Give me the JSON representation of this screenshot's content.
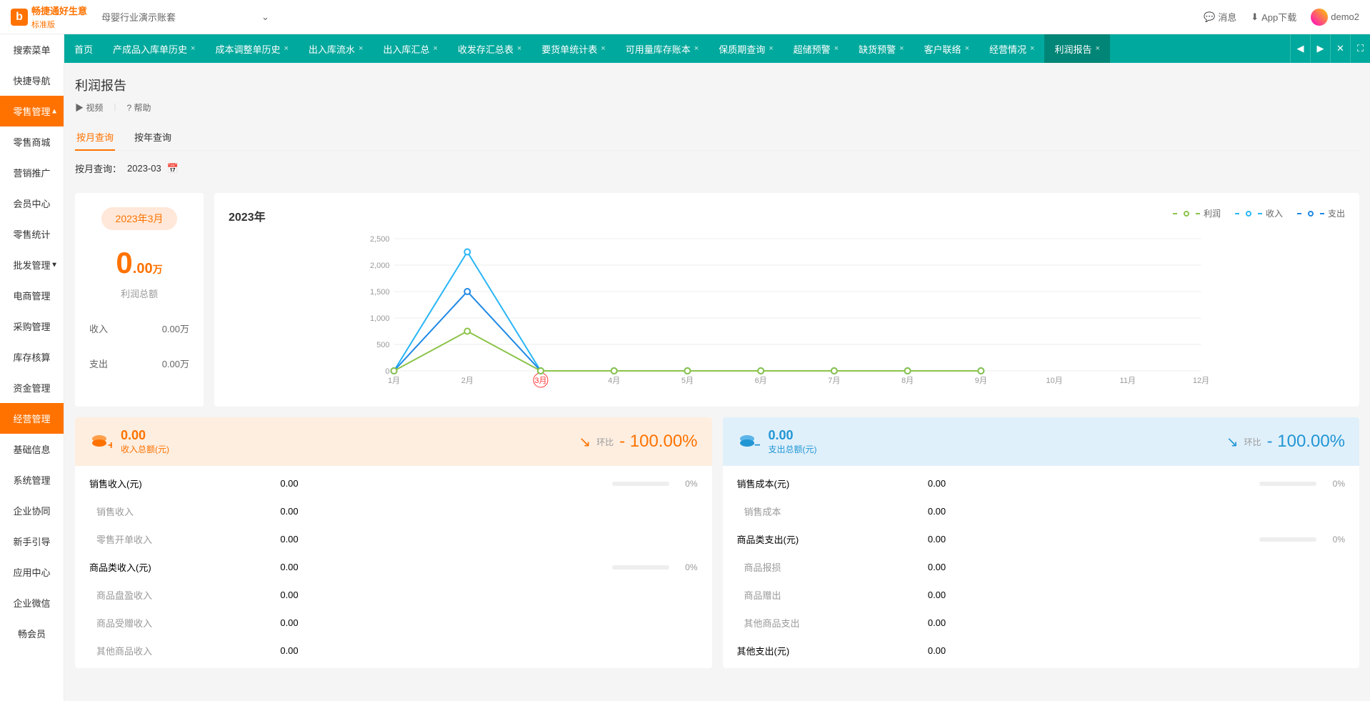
{
  "logo": {
    "brand": "畅捷通好生意",
    "edition": "标准版"
  },
  "account_selector": "母婴行业演示账套",
  "topbar": {
    "message": "消息",
    "app_download": "App下载",
    "user": "demo2"
  },
  "tabs": [
    {
      "label": "首页",
      "closable": false
    },
    {
      "label": "产成品入库单历史",
      "closable": true
    },
    {
      "label": "成本调整单历史",
      "closable": true
    },
    {
      "label": "出入库流水",
      "closable": true
    },
    {
      "label": "出入库汇总",
      "closable": true
    },
    {
      "label": "收发存汇总表",
      "closable": true
    },
    {
      "label": "要货单统计表",
      "closable": true
    },
    {
      "label": "可用量库存账本",
      "closable": true
    },
    {
      "label": "保质期查询",
      "closable": true
    },
    {
      "label": "超储预警",
      "closable": true
    },
    {
      "label": "缺货预警",
      "closable": true
    },
    {
      "label": "客户联络",
      "closable": true
    },
    {
      "label": "经营情况",
      "closable": true
    },
    {
      "label": "利润报告",
      "closable": true,
      "active": true
    }
  ],
  "sidebar": [
    {
      "label": "搜索菜单"
    },
    {
      "label": "快捷导航"
    },
    {
      "label": "零售管理",
      "active": true,
      "arrow": "▲"
    },
    {
      "label": "零售商城"
    },
    {
      "label": "营销推广"
    },
    {
      "label": "会员中心"
    },
    {
      "label": "零售统计"
    },
    {
      "label": "批发管理",
      "arrow": "▼"
    },
    {
      "label": "电商管理"
    },
    {
      "label": "采购管理"
    },
    {
      "label": "库存核算"
    },
    {
      "label": "资金管理"
    },
    {
      "label": "经营管理",
      "highlight": true
    },
    {
      "label": "基础信息"
    },
    {
      "label": "系统管理"
    },
    {
      "label": "企业协同"
    },
    {
      "label": "新手引导"
    },
    {
      "label": "应用中心"
    },
    {
      "label": "企业微信"
    },
    {
      "label": "畅会员"
    }
  ],
  "page": {
    "title": "利润报告",
    "video_link": "视频",
    "help_link": "帮助",
    "query_tabs": [
      {
        "label": "按月查询",
        "active": true
      },
      {
        "label": "按年查询"
      }
    ],
    "query_label": "按月查询：",
    "query_date": "2023-03"
  },
  "summary": {
    "period": "2023年3月",
    "big_int": "0",
    "big_dec": ".00",
    "big_unit": "万",
    "big_label": "利润总额",
    "rows": [
      {
        "k": "收入",
        "v": "0.00万"
      },
      {
        "k": "支出",
        "v": "0.00万"
      }
    ]
  },
  "chart": {
    "title": "2023年",
    "legend": [
      {
        "label": "利润",
        "color": "#8bc34a"
      },
      {
        "label": "收入",
        "color": "#29b6f6"
      },
      {
        "label": "支出",
        "color": "#1e88e5"
      }
    ],
    "y_ticks": [
      "2,500",
      "2,000",
      "1,500",
      "1,000",
      "500",
      "0"
    ],
    "x_labels": [
      "1月",
      "2月",
      "3月",
      "4月",
      "5月",
      "6月",
      "7月",
      "8月",
      "9月",
      "10月",
      "11月",
      "12月"
    ],
    "x_highlight_index": 2,
    "grid_color": "#eeeeee",
    "series": [
      {
        "color": "#29b6f6",
        "points": [
          0,
          2250,
          0,
          0,
          0,
          0,
          0,
          0,
          0,
          null,
          null,
          null
        ]
      },
      {
        "color": "#1e88e5",
        "points": [
          0,
          1500,
          0,
          0,
          0,
          0,
          0,
          0,
          0,
          null,
          null,
          null
        ]
      },
      {
        "color": "#8bc34a",
        "points": [
          0,
          750,
          0,
          0,
          0,
          0,
          0,
          0,
          0,
          null,
          null,
          null
        ]
      }
    ],
    "y_max": 2500
  },
  "income_panel": {
    "value": "0.00",
    "label": "收入总额(元)",
    "hb": "环比",
    "pct": "- 100.00%",
    "rows": [
      {
        "label": "销售收入(元)",
        "val": "0.00",
        "pct": "0%",
        "main": true
      },
      {
        "label": "销售收入",
        "val": "0.00",
        "main": false
      },
      {
        "label": "零售开单收入",
        "val": "0.00",
        "main": false
      },
      {
        "label": "商品类收入(元)",
        "val": "0.00",
        "pct": "0%",
        "main": true
      },
      {
        "label": "商品盘盈收入",
        "val": "0.00",
        "main": false
      },
      {
        "label": "商品受赠收入",
        "val": "0.00",
        "main": false
      },
      {
        "label": "其他商品收入",
        "val": "0.00",
        "main": false
      }
    ]
  },
  "expense_panel": {
    "value": "0.00",
    "label": "支出总额(元)",
    "hb": "环比",
    "pct": "- 100.00%",
    "rows": [
      {
        "label": "销售成本(元)",
        "val": "0.00",
        "pct": "0%",
        "main": true
      },
      {
        "label": "销售成本",
        "val": "0.00",
        "main": false
      },
      {
        "label": "商品类支出(元)",
        "val": "0.00",
        "pct": "0%",
        "main": true
      },
      {
        "label": "商品报损",
        "val": "0.00",
        "main": false
      },
      {
        "label": "商品赠出",
        "val": "0.00",
        "main": false
      },
      {
        "label": "其他商品支出",
        "val": "0.00",
        "main": false
      },
      {
        "label": "其他支出(元)",
        "val": "0.00",
        "main": true
      }
    ]
  }
}
